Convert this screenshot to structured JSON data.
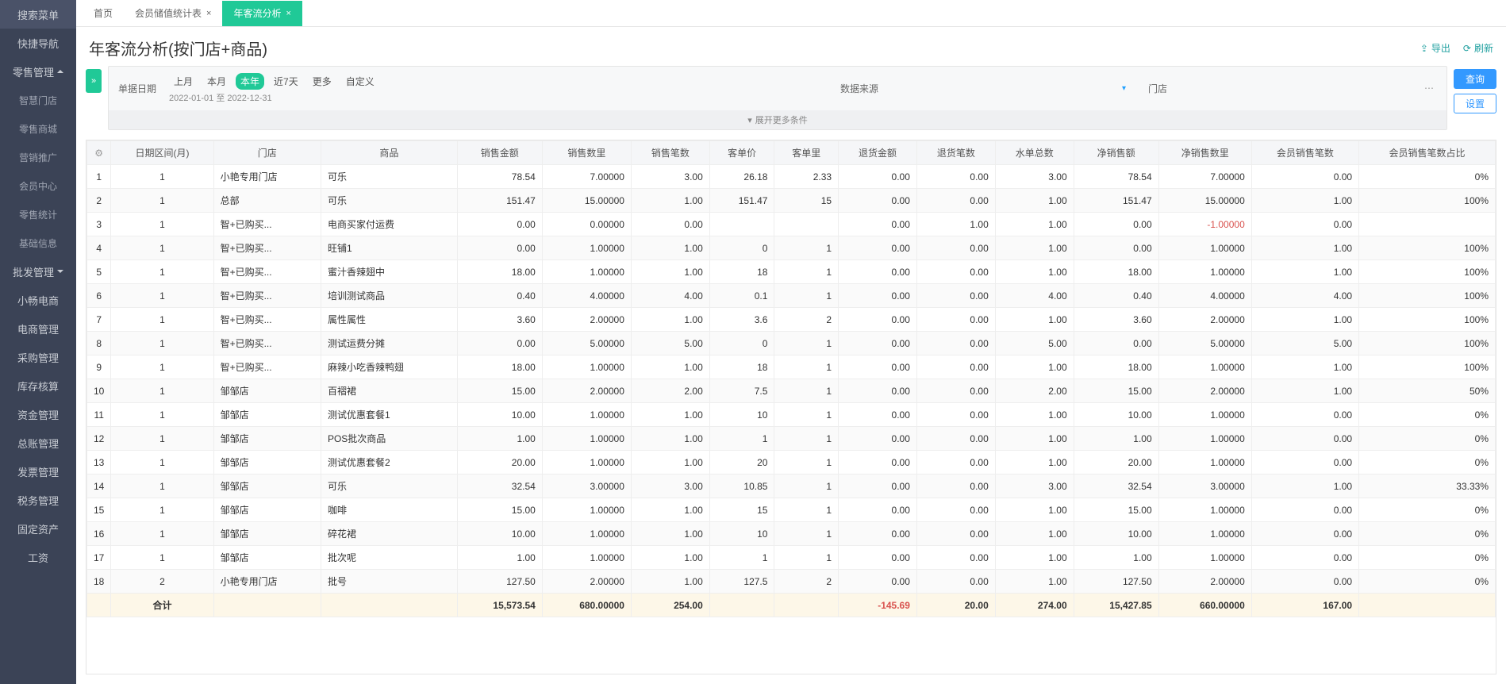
{
  "sidebar": {
    "items": [
      {
        "label": "搜索菜单",
        "type": "top"
      },
      {
        "label": "快捷导航",
        "type": "top"
      },
      {
        "label": "零售管理",
        "type": "top",
        "arrow": "up"
      },
      {
        "label": "智慧门店",
        "type": "sub"
      },
      {
        "label": "零售商城",
        "type": "sub"
      },
      {
        "label": "营销推广",
        "type": "sub"
      },
      {
        "label": "会员中心",
        "type": "sub"
      },
      {
        "label": "零售统计",
        "type": "sub"
      },
      {
        "label": "基础信息",
        "type": "sub"
      },
      {
        "label": "批发管理",
        "type": "top",
        "arrow": "down"
      },
      {
        "label": "小畅电商",
        "type": "top"
      },
      {
        "label": "电商管理",
        "type": "top"
      },
      {
        "label": "采购管理",
        "type": "top"
      },
      {
        "label": "库存核算",
        "type": "top"
      },
      {
        "label": "资金管理",
        "type": "top"
      },
      {
        "label": "总账管理",
        "type": "top"
      },
      {
        "label": "发票管理",
        "type": "top"
      },
      {
        "label": "税务管理",
        "type": "top"
      },
      {
        "label": "固定资产",
        "type": "top"
      },
      {
        "label": "工资",
        "type": "top"
      }
    ]
  },
  "tabs": [
    {
      "label": "首页",
      "closable": false,
      "active": false
    },
    {
      "label": "会员储值统计表",
      "closable": true,
      "active": false
    },
    {
      "label": "年客流分析",
      "closable": true,
      "active": true
    }
  ],
  "page": {
    "title": "年客流分析(按门店+商品)",
    "export_label": "导出",
    "refresh_label": "刷新"
  },
  "filter": {
    "date_label": "单据日期",
    "pills": [
      "上月",
      "本月",
      "本年",
      "近7天",
      "更多",
      "自定义"
    ],
    "active_pill": "本年",
    "date_range": "2022-01-01 至 2022-12-31",
    "source_label": "数据来源",
    "store_label": "门店",
    "query_btn": "查询",
    "setting_btn": "设置",
    "expand_label": "展开更多条件"
  },
  "table": {
    "columns": [
      {
        "label": "⚙",
        "key": "gear"
      },
      {
        "label": "日期区间(月)",
        "key": "month"
      },
      {
        "label": "门店",
        "key": "store"
      },
      {
        "label": "商品",
        "key": "product"
      },
      {
        "label": "销售金额",
        "key": "sales_amt"
      },
      {
        "label": "销售数里",
        "key": "sales_qty"
      },
      {
        "label": "销售笔数",
        "key": "sales_cnt"
      },
      {
        "label": "客单价",
        "key": "avg_price"
      },
      {
        "label": "客单里",
        "key": "avg_qty"
      },
      {
        "label": "退货金额",
        "key": "return_amt"
      },
      {
        "label": "退货笔数",
        "key": "return_cnt"
      },
      {
        "label": "水单总数",
        "key": "receipts"
      },
      {
        "label": "净销售额",
        "key": "net_amt"
      },
      {
        "label": "净销售数里",
        "key": "net_qty"
      },
      {
        "label": "会员销售笔数",
        "key": "member_cnt"
      },
      {
        "label": "会员销售笔数占比",
        "key": "member_pct"
      }
    ],
    "rows": [
      [
        "1",
        "1",
        "小艳专用门店",
        "可乐",
        "78.54",
        "7.00000",
        "3.00",
        "26.18",
        "2.33",
        "0.00",
        "0.00",
        "3.00",
        "78.54",
        "7.00000",
        "0.00",
        "0%"
      ],
      [
        "2",
        "1",
        "总部",
        "可乐",
        "151.47",
        "15.00000",
        "1.00",
        "151.47",
        "15",
        "0.00",
        "0.00",
        "1.00",
        "151.47",
        "15.00000",
        "1.00",
        "100%"
      ],
      [
        "3",
        "1",
        "智+已购买...",
        "电商买家付运费",
        "0.00",
        "0.00000",
        "0.00",
        "",
        "",
        "0.00",
        "1.00",
        "1.00",
        "0.00",
        "-1.00000",
        "0.00",
        ""
      ],
      [
        "4",
        "1",
        "智+已购买...",
        "旺铺1",
        "0.00",
        "1.00000",
        "1.00",
        "0",
        "1",
        "0.00",
        "0.00",
        "1.00",
        "0.00",
        "1.00000",
        "1.00",
        "100%"
      ],
      [
        "5",
        "1",
        "智+已购买...",
        "蜜汁香辣翅中",
        "18.00",
        "1.00000",
        "1.00",
        "18",
        "1",
        "0.00",
        "0.00",
        "1.00",
        "18.00",
        "1.00000",
        "1.00",
        "100%"
      ],
      [
        "6",
        "1",
        "智+已购买...",
        "培训测试商品",
        "0.40",
        "4.00000",
        "4.00",
        "0.1",
        "1",
        "0.00",
        "0.00",
        "4.00",
        "0.40",
        "4.00000",
        "4.00",
        "100%"
      ],
      [
        "7",
        "1",
        "智+已购买...",
        "属性属性",
        "3.60",
        "2.00000",
        "1.00",
        "3.6",
        "2",
        "0.00",
        "0.00",
        "1.00",
        "3.60",
        "2.00000",
        "1.00",
        "100%"
      ],
      [
        "8",
        "1",
        "智+已购买...",
        "测试运费分摊",
        "0.00",
        "5.00000",
        "5.00",
        "0",
        "1",
        "0.00",
        "0.00",
        "5.00",
        "0.00",
        "5.00000",
        "5.00",
        "100%"
      ],
      [
        "9",
        "1",
        "智+已购买...",
        "麻辣小吃香辣鸭翅",
        "18.00",
        "1.00000",
        "1.00",
        "18",
        "1",
        "0.00",
        "0.00",
        "1.00",
        "18.00",
        "1.00000",
        "1.00",
        "100%"
      ],
      [
        "10",
        "1",
        "邹邹店",
        "百褶裙",
        "15.00",
        "2.00000",
        "2.00",
        "7.5",
        "1",
        "0.00",
        "0.00",
        "2.00",
        "15.00",
        "2.00000",
        "1.00",
        "50%"
      ],
      [
        "11",
        "1",
        "邹邹店",
        "测试优惠套餐1",
        "10.00",
        "1.00000",
        "1.00",
        "10",
        "1",
        "0.00",
        "0.00",
        "1.00",
        "10.00",
        "1.00000",
        "0.00",
        "0%"
      ],
      [
        "12",
        "1",
        "邹邹店",
        "POS批次商品",
        "1.00",
        "1.00000",
        "1.00",
        "1",
        "1",
        "0.00",
        "0.00",
        "1.00",
        "1.00",
        "1.00000",
        "0.00",
        "0%"
      ],
      [
        "13",
        "1",
        "邹邹店",
        "测试优惠套餐2",
        "20.00",
        "1.00000",
        "1.00",
        "20",
        "1",
        "0.00",
        "0.00",
        "1.00",
        "20.00",
        "1.00000",
        "0.00",
        "0%"
      ],
      [
        "14",
        "1",
        "邹邹店",
        "可乐",
        "32.54",
        "3.00000",
        "3.00",
        "10.85",
        "1",
        "0.00",
        "0.00",
        "3.00",
        "32.54",
        "3.00000",
        "1.00",
        "33.33%"
      ],
      [
        "15",
        "1",
        "邹邹店",
        "咖啡",
        "15.00",
        "1.00000",
        "1.00",
        "15",
        "1",
        "0.00",
        "0.00",
        "1.00",
        "15.00",
        "1.00000",
        "0.00",
        "0%"
      ],
      [
        "16",
        "1",
        "邹邹店",
        "碎花裙",
        "10.00",
        "1.00000",
        "1.00",
        "10",
        "1",
        "0.00",
        "0.00",
        "1.00",
        "10.00",
        "1.00000",
        "0.00",
        "0%"
      ],
      [
        "17",
        "1",
        "邹邹店",
        "批次呢",
        "1.00",
        "1.00000",
        "1.00",
        "1",
        "1",
        "0.00",
        "0.00",
        "1.00",
        "1.00",
        "1.00000",
        "0.00",
        "0%"
      ],
      [
        "18",
        "2",
        "小艳专用门店",
        "批号",
        "127.50",
        "2.00000",
        "1.00",
        "127.5",
        "2",
        "0.00",
        "0.00",
        "1.00",
        "127.50",
        "2.00000",
        "0.00",
        "0%"
      ]
    ],
    "total": {
      "label": "合计",
      "values": [
        "",
        "",
        "",
        "",
        "15,573.54",
        "680.00000",
        "254.00",
        "",
        "",
        "-145.69",
        "20.00",
        "274.00",
        "15,427.85",
        "660.00000",
        "167.00",
        ""
      ]
    }
  },
  "colors": {
    "primary": "#20c997",
    "blue": "#3399ff",
    "sidebar": "#3b4356",
    "neg": "#d9534f"
  }
}
